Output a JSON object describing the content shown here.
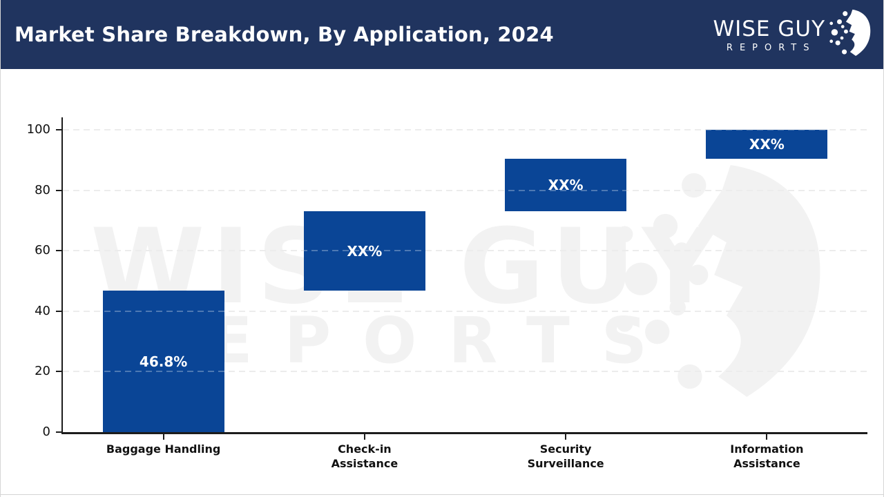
{
  "header": {
    "title": "Market Share Breakdown, By Application, 2024",
    "brand": {
      "line1": "WISE GUY",
      "line2": "REPORTS"
    }
  },
  "watermark": {
    "line1": "WISE GUY",
    "line2": "REPORTS"
  },
  "colors": {
    "header_bg": "#20345f",
    "bar": "#0a4596",
    "grid": "#e4e4e4",
    "axis": "#1c1c1c",
    "watermark": "#f2f2f2",
    "title_text": "#ffffff",
    "bar_label_text": "#ffffff"
  },
  "chart_data": {
    "type": "bar",
    "variant": "waterfall",
    "title": "Market Share Breakdown, By Application, 2024",
    "categories": [
      "Baggage Handling",
      "Check-in Assistance",
      "Security Surveillance",
      "Information Assistance"
    ],
    "category_lines": [
      [
        "Baggage Handling"
      ],
      [
        "Check-in",
        "Assistance"
      ],
      [
        "Security",
        "Surveillance"
      ],
      [
        "Information",
        "Assistance"
      ]
    ],
    "bars": [
      {
        "category": "Baggage Handling",
        "start": 0,
        "end": 46.8,
        "label": "46.8%"
      },
      {
        "category": "Check-in Assistance",
        "start": 46.8,
        "end": 73,
        "label": "XX%"
      },
      {
        "category": "Security Surveillance",
        "start": 73,
        "end": 90.5,
        "label": "XX%"
      },
      {
        "category": "Information Assistance",
        "start": 90.5,
        "end": 100,
        "label": "XX%"
      }
    ],
    "xlabel": "",
    "ylabel": "",
    "ylim": [
      0,
      100
    ],
    "yticks": [
      0,
      20,
      40,
      60,
      80,
      100
    ],
    "grid": true,
    "grid_style": "dashed",
    "legend": false,
    "bar_color": "#0a4596"
  }
}
